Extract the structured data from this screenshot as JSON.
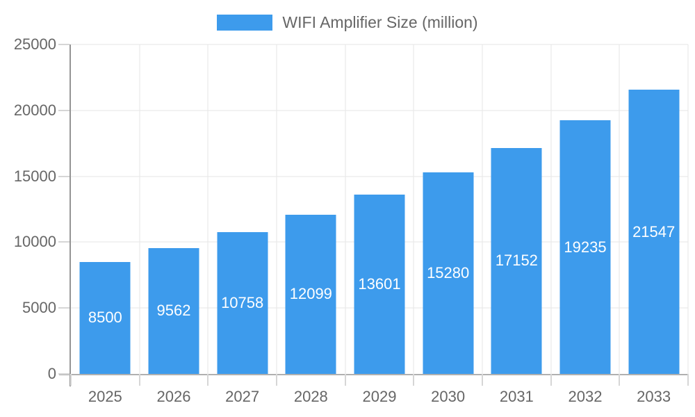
{
  "chart_data": {
    "type": "bar",
    "title": "",
    "legend": "WIFI Amplifier Size (million)",
    "legend_position": "top-center",
    "categories": [
      "2025",
      "2026",
      "2027",
      "2028",
      "2029",
      "2030",
      "2031",
      "2032",
      "2033"
    ],
    "values": [
      8500,
      9562,
      10758,
      12099,
      13601,
      15280,
      17152,
      19235,
      21547
    ],
    "xlabel": "",
    "ylabel": "",
    "ylim": [
      0,
      25000
    ],
    "yticks": [
      0,
      5000,
      10000,
      15000,
      20000,
      25000
    ],
    "grid": true,
    "value_labels": "inside-center",
    "colors": {
      "bar": "#3D9BEC",
      "grid": "#E5E5E5",
      "tick": "#D6D6D6",
      "axis_y": "#949494",
      "axis_x": "#B0B0B0",
      "text": "#666666",
      "value_text": "#FFFFFF"
    }
  }
}
